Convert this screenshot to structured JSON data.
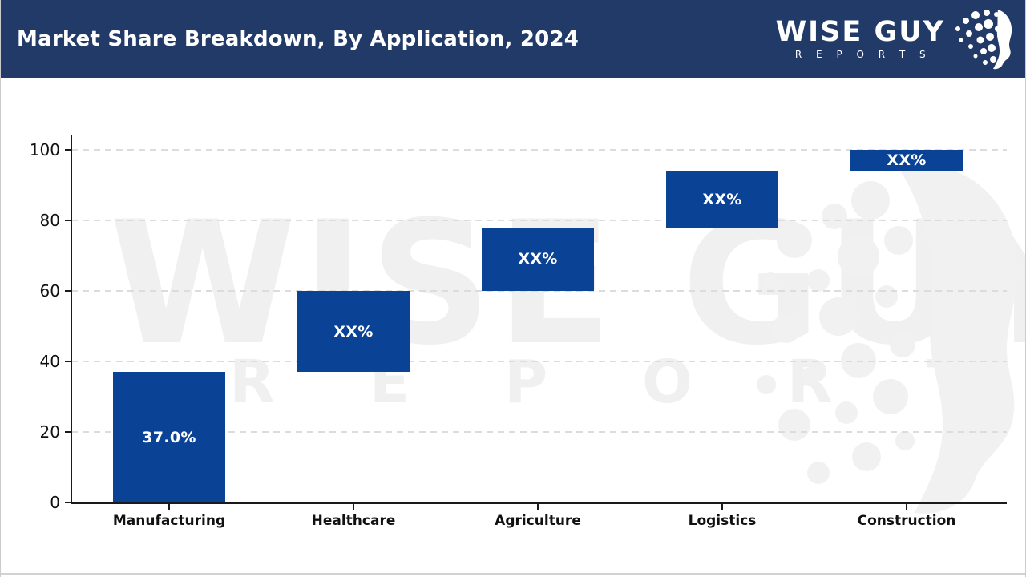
{
  "header": {
    "title": "Market Share Breakdown, By Application, 2024",
    "logo_line1": "WISE GUY",
    "logo_line2": "R E P O R T S",
    "bg_color": "#223A68"
  },
  "watermark": {
    "line1": "WISE GUY",
    "line2": "R E P O R T S"
  },
  "chart_data": {
    "type": "bar",
    "subtype": "waterfall",
    "title": "Market Share Breakdown, By Application, 2024",
    "categories": [
      "Manufacturing",
      "Healthcare",
      "Agriculture",
      "Logistics",
      "Construction"
    ],
    "segments": [
      {
        "start": 0,
        "end": 37,
        "label": "37.0%"
      },
      {
        "start": 37,
        "end": 60,
        "label": "XX%"
      },
      {
        "start": 60,
        "end": 78,
        "label": "XX%"
      },
      {
        "start": 78,
        "end": 94,
        "label": "XX%"
      },
      {
        "start": 94,
        "end": 100,
        "label": "XX%"
      }
    ],
    "values": [
      37,
      23,
      18,
      16,
      6
    ],
    "bar_labels": [
      "37.0%",
      "XX%",
      "XX%",
      "XX%",
      "XX%"
    ],
    "xlabel": "",
    "ylabel": "",
    "ylim": [
      0,
      104
    ],
    "yticks": [
      0,
      20,
      40,
      60,
      80,
      100
    ],
    "grid": "horizontal-dashed",
    "legend": "none",
    "bar_color": "#0A4296",
    "label_color": "#FFFFFF"
  }
}
